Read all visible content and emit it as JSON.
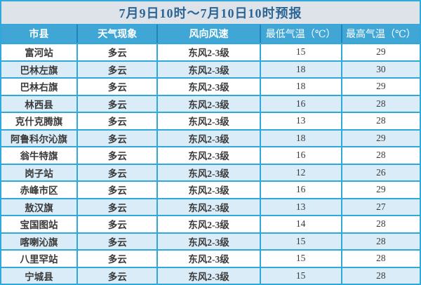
{
  "chart_data": {
    "type": "table",
    "title": "7月9日10时～7月10日10时预报",
    "columns": [
      "市县",
      "天气现象",
      "风向风速",
      "最低气温（℃）",
      "最高气温（℃）"
    ],
    "rows": [
      [
        "富河站",
        "多云",
        "东风2-3级",
        "15",
        "29"
      ],
      [
        "巴林左旗",
        "多云",
        "东风2-3级",
        "18",
        "30"
      ],
      [
        "巴林右旗",
        "多云",
        "东风2-3级",
        "18",
        "29"
      ],
      [
        "林西县",
        "多云",
        "东风2-3级",
        "16",
        "28"
      ],
      [
        "克什克腾旗",
        "多云",
        "东风2-3级",
        "13",
        "28"
      ],
      [
        "阿鲁科尔沁旗",
        "多云",
        "东风2-3级",
        "18",
        "29"
      ],
      [
        "翁牛特旗",
        "多云",
        "东风2-3级",
        "16",
        "28"
      ],
      [
        "岗子站",
        "多云",
        "东风2-3级",
        "12",
        "26"
      ],
      [
        "赤峰市区",
        "多云",
        "东风2-3级",
        "16",
        "29"
      ],
      [
        "敖汉旗",
        "多云",
        "东风2-3级",
        "13",
        "27"
      ],
      [
        "宝国图站",
        "多云",
        "东风2-3级",
        "14",
        "28"
      ],
      [
        "喀喇沁旗",
        "多云",
        "东风2-3级",
        "15",
        "28"
      ],
      [
        "八里罕站",
        "多云",
        "东风2-3级",
        "15",
        "28"
      ],
      [
        "宁城县",
        "多云",
        "东风2-3级",
        "15",
        "28"
      ]
    ]
  },
  "colors": {
    "grid": "#2fa8dc",
    "title_bg": "#dde3e8",
    "title_text": "#2a6496",
    "header_bg": "#3fa6d6",
    "header_text": "#ffffff",
    "header_divider": "#1f86ba",
    "row_bg": "#ffffff",
    "row_alt_bg": "#d9ecf8",
    "cell_text": "#3a3a3a"
  }
}
